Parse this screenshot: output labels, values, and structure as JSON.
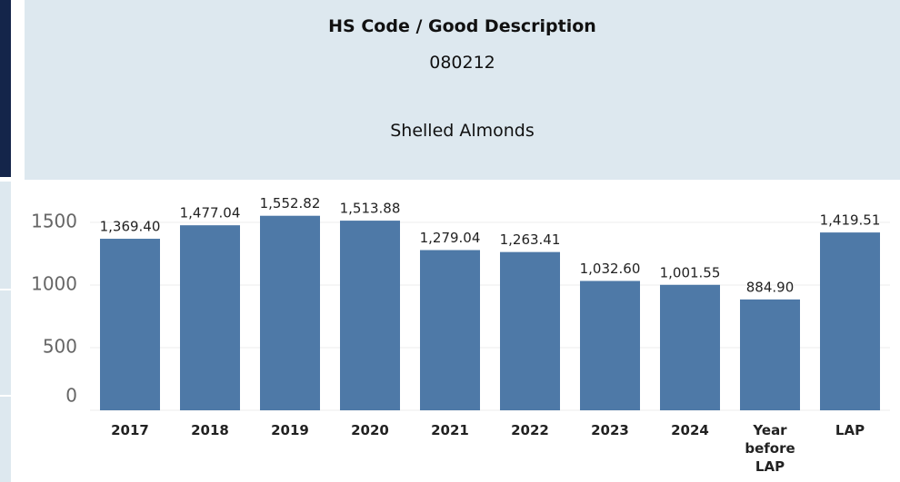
{
  "header": {
    "title": "HS Code / Good Description",
    "code": "080212",
    "description": "Shelled Almonds"
  },
  "chart_data": {
    "type": "bar",
    "categories": [
      "2017",
      "2018",
      "2019",
      "2020",
      "2021",
      "2022",
      "2023",
      "2024",
      "Year before LAP",
      "LAP"
    ],
    "values": [
      1369.4,
      1477.04,
      1552.82,
      1513.88,
      1279.04,
      1263.41,
      1032.6,
      1001.55,
      884.9,
      1419.51
    ],
    "value_labels": [
      "1,369.40",
      "1,477.04",
      "1,552.82",
      "1,513.88",
      "1,279.04",
      "1,263.41",
      "1,032.60",
      "1,001.55",
      "884.90",
      "1,419.51"
    ],
    "color": "#4e79a7",
    "ylim": [
      0,
      1800
    ],
    "yticks": [
      0,
      500,
      1000,
      1500
    ],
    "grid": true
  }
}
